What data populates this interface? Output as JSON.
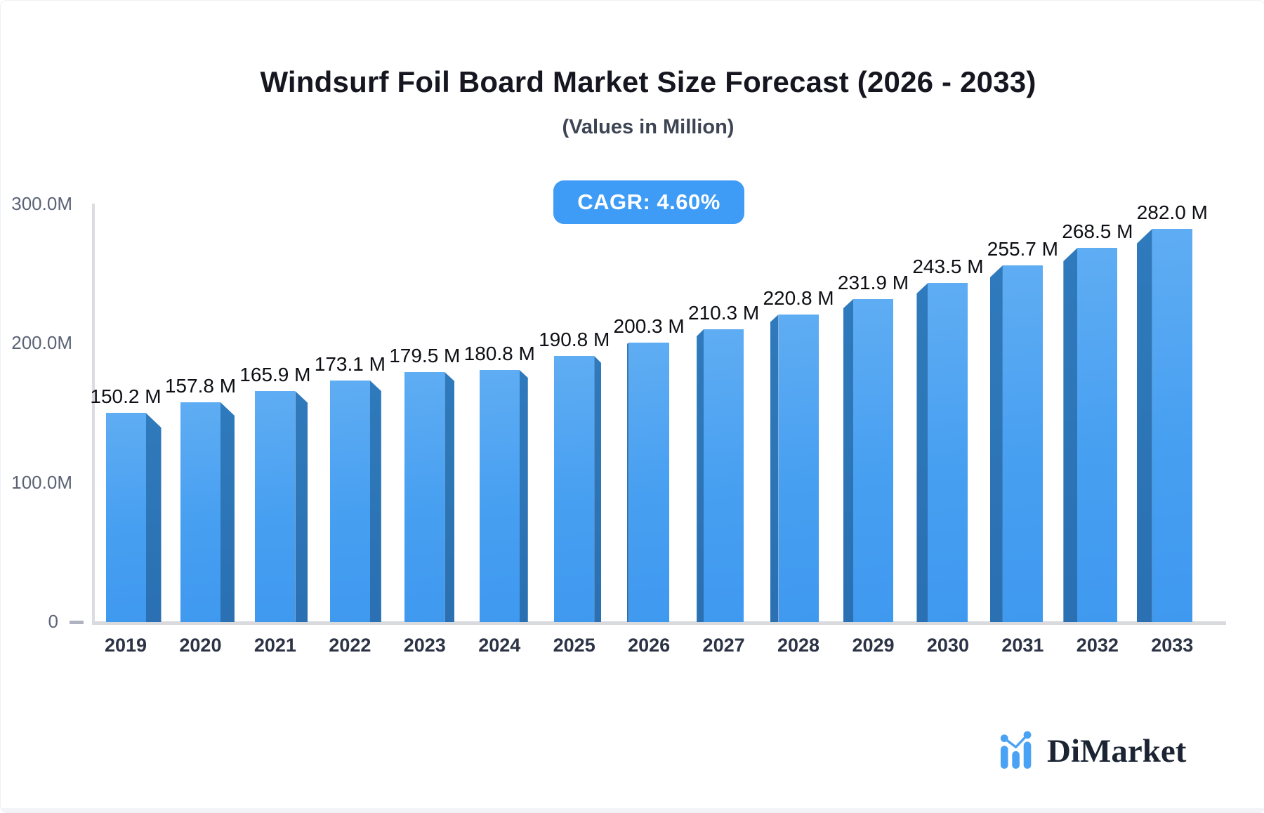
{
  "header": {
    "title": "Windsurf Foil Board Market Size Forecast (2026 - 2033)",
    "subtitle": "(Values in Million)",
    "cagr_badge": "CAGR: 4.60%"
  },
  "logo": {
    "name": "DiMarket"
  },
  "colors": {
    "bar_light": "#479ff1",
    "bar_dark": "#2b73b5",
    "badge_blue": "#3e9bf6",
    "axis_gray": "#d8dade",
    "tick_text": "#5b6476",
    "year_text": "#2b3345",
    "logo_navy": "#1c2433",
    "logo_blue": "#4aa2f5"
  },
  "chart_data": {
    "type": "bar",
    "title": "Windsurf Foil Board Market Size Forecast (2026 - 2033)",
    "subtitle": "(Values in Million)",
    "xlabel": "",
    "ylabel": "",
    "unit": "Million",
    "ylim": [
      0,
      300
    ],
    "grid": false,
    "legend": false,
    "categories": [
      "2019",
      "2020",
      "2021",
      "2022",
      "2023",
      "2024",
      "2025",
      "2026",
      "2027",
      "2028",
      "2029",
      "2030",
      "2031",
      "2032",
      "2033"
    ],
    "values": [
      150.2,
      157.8,
      165.9,
      173.1,
      179.5,
      180.8,
      190.8,
      200.3,
      210.3,
      220.8,
      231.9,
      243.5,
      255.7,
      268.5,
      282.0
    ],
    "value_labels": [
      "150.2 M",
      "157.8 M",
      "165.9 M",
      "173.1 M",
      "179.5 M",
      "180.8 M",
      "190.8 M",
      "200.3 M",
      "210.3 M",
      "220.8 M",
      "231.9 M",
      "243.5 M",
      "255.7 M",
      "268.5 M",
      "282.0 M"
    ],
    "y_ticks": [
      {
        "label": "300.0M",
        "value": 300
      },
      {
        "label": "200.0M",
        "value": 200
      },
      {
        "label": "100.0M",
        "value": 100
      },
      {
        "label": "0",
        "value": 0
      }
    ]
  }
}
